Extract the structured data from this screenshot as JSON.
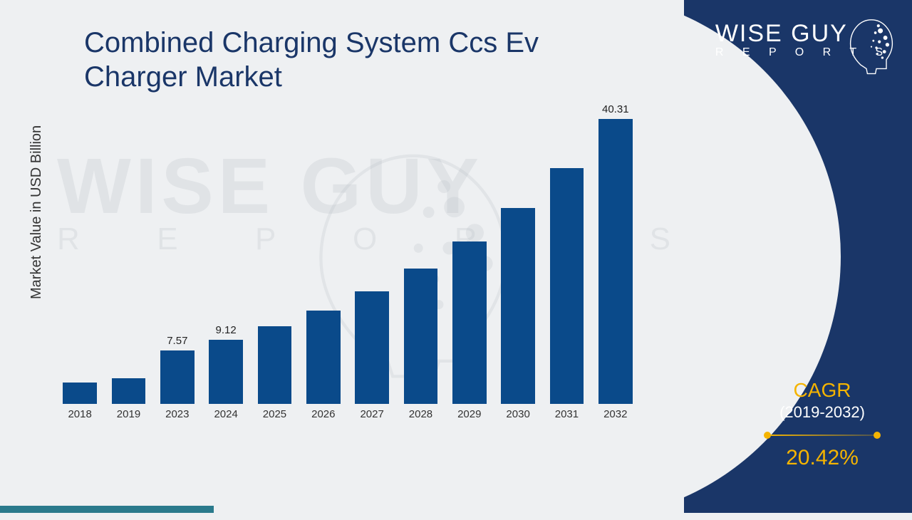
{
  "title": "Combined Charging System Ccs Ev Charger Market",
  "y_axis_label": "Market Value in USD Billion",
  "chart": {
    "type": "bar",
    "categories": [
      "2018",
      "2019",
      "2023",
      "2024",
      "2025",
      "2026",
      "2027",
      "2028",
      "2029",
      "2030",
      "2031",
      "2032"
    ],
    "values": [
      3.0,
      3.6,
      7.57,
      9.12,
      11.0,
      13.2,
      15.9,
      19.1,
      23.0,
      27.7,
      33.4,
      40.31
    ],
    "show_value_for_index": [
      2,
      3,
      11
    ],
    "bar_color": "#0a4a8a",
    "ylim": [
      0,
      40.31
    ],
    "label_fontsize": 15,
    "value_fontsize": 15,
    "background_color": "#eef0f2"
  },
  "cagr": {
    "title": "CAGR",
    "range": "(2019-2032)",
    "value": "20.42%",
    "color": "#f5b400"
  },
  "logo": {
    "line1": "WISE GUY",
    "line2": "R E P O R T S"
  },
  "side_panel_color": "#1a3668",
  "bottom_accent_color": "#2a7a8c",
  "watermark": {
    "line1": "WISE GUY",
    "line2": "R  E  P  O  R  T  S"
  }
}
